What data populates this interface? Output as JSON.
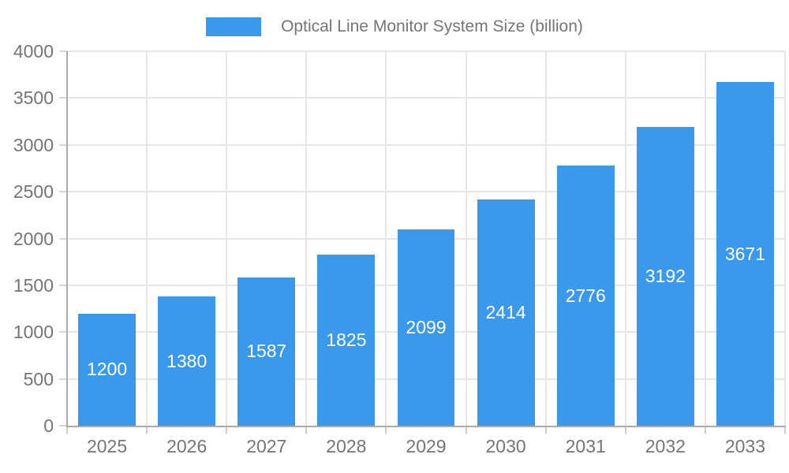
{
  "chart_data": {
    "type": "bar",
    "title": "Optical Line Monitor System Size (billion)",
    "categories": [
      "2025",
      "2026",
      "2027",
      "2028",
      "2029",
      "2030",
      "2031",
      "2032",
      "2033"
    ],
    "series": [
      {
        "name": "Optical Line Monitor System Size (billion)",
        "values": [
          1200,
          1380,
          1587,
          1825,
          2099,
          2414,
          2776,
          3192,
          3671
        ]
      }
    ],
    "xlabel": "",
    "ylabel": "",
    "ylim": [
      0,
      4000
    ],
    "ytick_step": 500,
    "ytick_labels": [
      "0",
      "500",
      "1000",
      "1500",
      "2000",
      "2500",
      "3000",
      "3500",
      "4000"
    ],
    "grid": true,
    "legend_position": "top",
    "value_labels_position": "inside-center",
    "colors": {
      "bar": "#3b99ec",
      "bar_value_label": "#ffffff",
      "axis_text": "#757575",
      "legend_text": "#757575",
      "gridline": "#e6e6e6",
      "axis_line": "#ababab"
    }
  }
}
